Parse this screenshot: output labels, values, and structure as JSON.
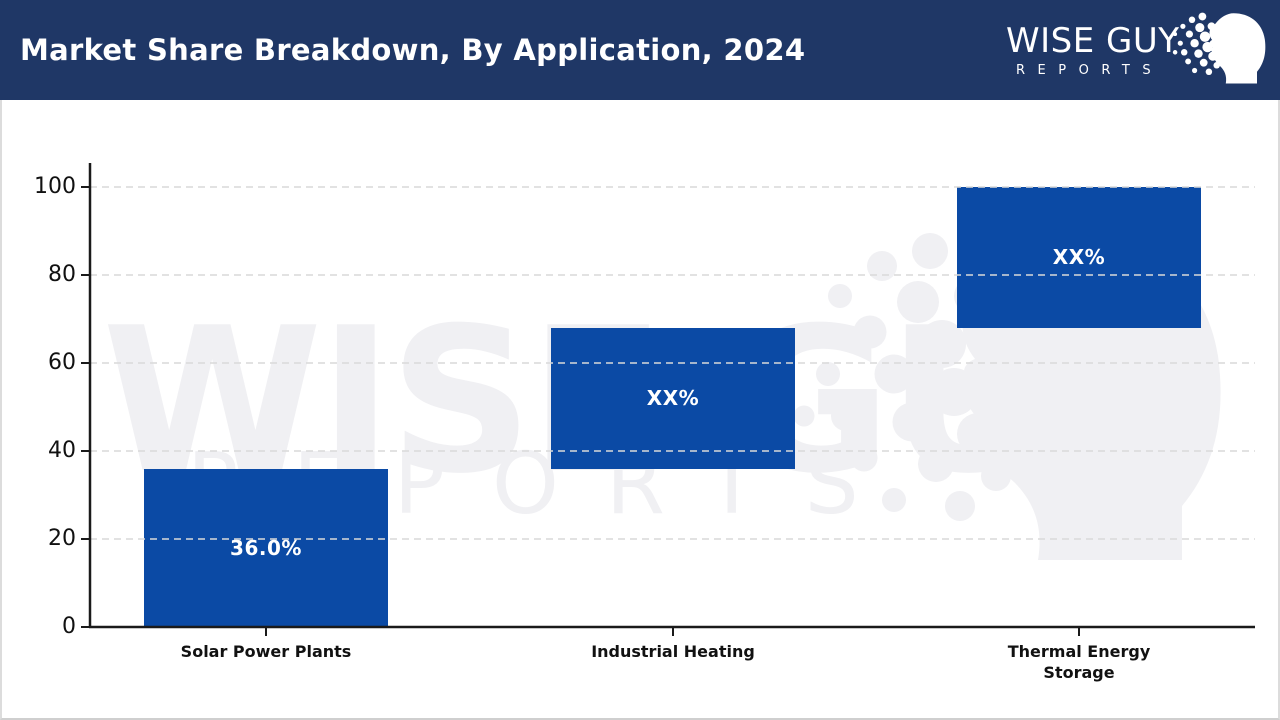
{
  "header": {
    "title": "Market Share Breakdown, By Application, 2024",
    "logo_line1": "WISE GUY",
    "logo_line2": "REPORTS"
  },
  "watermark": {
    "line1": "WISE GUY",
    "line2": "REPORTS"
  },
  "colors": {
    "header_bg": "#1f3766",
    "bar": "#0b4aa5",
    "bar_label": "#ffffff",
    "grid": "#d9d9d9",
    "axis": "#1a1a1a",
    "tick_text": "#111111",
    "watermark": "#f0f0f3",
    "baseline_rule": "#cfcfcf"
  },
  "chart_data": {
    "type": "bar",
    "variant": "waterfall",
    "title": "Market Share Breakdown, By Application, 2024",
    "unit": "%",
    "categories": [
      "Solar Power Plants",
      "Industrial Heating",
      "Thermal Energy Storage"
    ],
    "category_lines": [
      [
        "Solar Power Plants"
      ],
      [
        "Industrial Heating"
      ],
      [
        "Thermal Energy",
        "Storage"
      ]
    ],
    "segments": [
      {
        "category": "Solar Power Plants",
        "start": 0,
        "end": 36,
        "value": 36,
        "label": "36.0%"
      },
      {
        "category": "Industrial Heating",
        "start": 36,
        "end": 68,
        "value": 32,
        "label": "XX%"
      },
      {
        "category": "Thermal Energy Storage",
        "start": 68,
        "end": 100,
        "value": 32,
        "label": "XX%"
      }
    ],
    "y_ticks": [
      0,
      20,
      40,
      60,
      80,
      100
    ],
    "ylim": [
      0,
      100
    ],
    "grid": "horizontal-dashed-over-bars",
    "legend": "none",
    "xlabel": "",
    "ylabel": ""
  }
}
